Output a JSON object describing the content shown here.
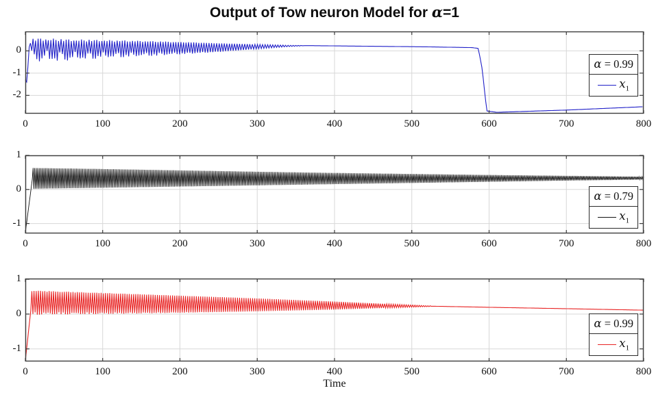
{
  "title": {
    "prefix": "Output of Tow neuron Model for ",
    "alpha": "α",
    "suffix": "=1"
  },
  "xlabel": "Time",
  "colors": {
    "grid": "#d7d7d7",
    "axis": "#3c3c3c",
    "text": "#111111",
    "series_blue": "#1f1fc8",
    "series_black": "#121212",
    "series_red": "#e82222"
  },
  "chart_data": [
    {
      "type": "line",
      "series_name": "x_1",
      "color": "#1f1fc8",
      "legend": {
        "alpha_symbol": "α",
        "alpha_value": " = 0.99",
        "series_base": "x",
        "series_sub": "1"
      },
      "xlim": [
        0,
        800
      ],
      "ylim": [
        -2.82,
        0.87
      ],
      "xticks": [
        0,
        100,
        200,
        300,
        400,
        500,
        600,
        700,
        800
      ],
      "yticks": [
        0,
        -1,
        -2
      ],
      "grid": true,
      "legend_position": "right-middle",
      "osc_period": 3.3,
      "jitter": 0.85,
      "envelope": {
        "x": [
          0,
          2,
          5,
          8,
          30,
          60,
          100,
          150,
          200,
          250,
          300,
          340,
          365,
          450,
          520,
          578,
          586,
          591,
          597,
          610,
          700,
          800
        ],
        "upper": [
          -1.3,
          -1.42,
          0.2,
          0.58,
          0.56,
          0.52,
          0.49,
          0.45,
          0.4,
          0.34,
          0.29,
          0.25,
          0.235,
          0.205,
          0.18,
          0.145,
          0.11,
          -0.8,
          -2.7,
          -2.76,
          -2.66,
          -2.51
        ],
        "lower": [
          -1.3,
          -1.42,
          0.2,
          -0.48,
          -0.46,
          -0.43,
          -0.33,
          -0.25,
          -0.16,
          -0.05,
          0.09,
          0.19,
          0.235,
          0.205,
          0.18,
          0.145,
          0.11,
          -0.8,
          -2.7,
          -2.76,
          -2.66,
          -2.51
        ]
      }
    },
    {
      "type": "line",
      "series_name": "x_1",
      "color": "#121212",
      "legend": {
        "alpha_symbol": "α",
        "alpha_value": " = 0.79",
        "series_base": "x",
        "series_sub": "1"
      },
      "xlim": [
        0,
        800
      ],
      "ylim": [
        -1.29,
        1.0
      ],
      "xticks": [
        0,
        100,
        200,
        300,
        400,
        500,
        600,
        700,
        800
      ],
      "yticks": [
        1,
        0,
        -1
      ],
      "grid": true,
      "legend_position": "right-lower",
      "osc_period": 2.0,
      "jitter": 0,
      "envelope": {
        "x": [
          0,
          9,
          10,
          100,
          200,
          300,
          400,
          500,
          600,
          700,
          800
        ],
        "upper": [
          -1.26,
          0.3,
          0.63,
          0.6,
          0.56,
          0.52,
          0.485,
          0.455,
          0.425,
          0.4,
          0.375
        ],
        "lower": [
          -1.26,
          0.3,
          0.02,
          0.05,
          0.085,
          0.12,
          0.155,
          0.19,
          0.225,
          0.26,
          0.29
        ]
      }
    },
    {
      "type": "line",
      "series_name": "x_1",
      "color": "#e82222",
      "legend": {
        "alpha_symbol": "α",
        "alpha_value": " = 0.99",
        "series_base": "x",
        "series_sub": "1"
      },
      "xlim": [
        0,
        800
      ],
      "ylim": [
        -1.36,
        1.02
      ],
      "xticks": [
        0,
        100,
        200,
        300,
        400,
        500,
        600,
        700,
        800
      ],
      "yticks": [
        1,
        0,
        -1
      ],
      "grid": true,
      "legend_position": "right-lower",
      "osc_period": 2.8,
      "jitter": 0.2,
      "envelope": {
        "x": [
          0,
          7,
          8,
          100,
          200,
          300,
          400,
          480,
          530,
          600,
          700,
          800
        ],
        "upper": [
          -1.33,
          0.1,
          0.68,
          0.61,
          0.53,
          0.45,
          0.36,
          0.28,
          0.23,
          0.195,
          0.155,
          0.115
        ],
        "lower": [
          -1.33,
          0.1,
          -0.02,
          0.0,
          0.035,
          0.08,
          0.13,
          0.185,
          0.22,
          0.195,
          0.155,
          0.11
        ]
      }
    }
  ]
}
